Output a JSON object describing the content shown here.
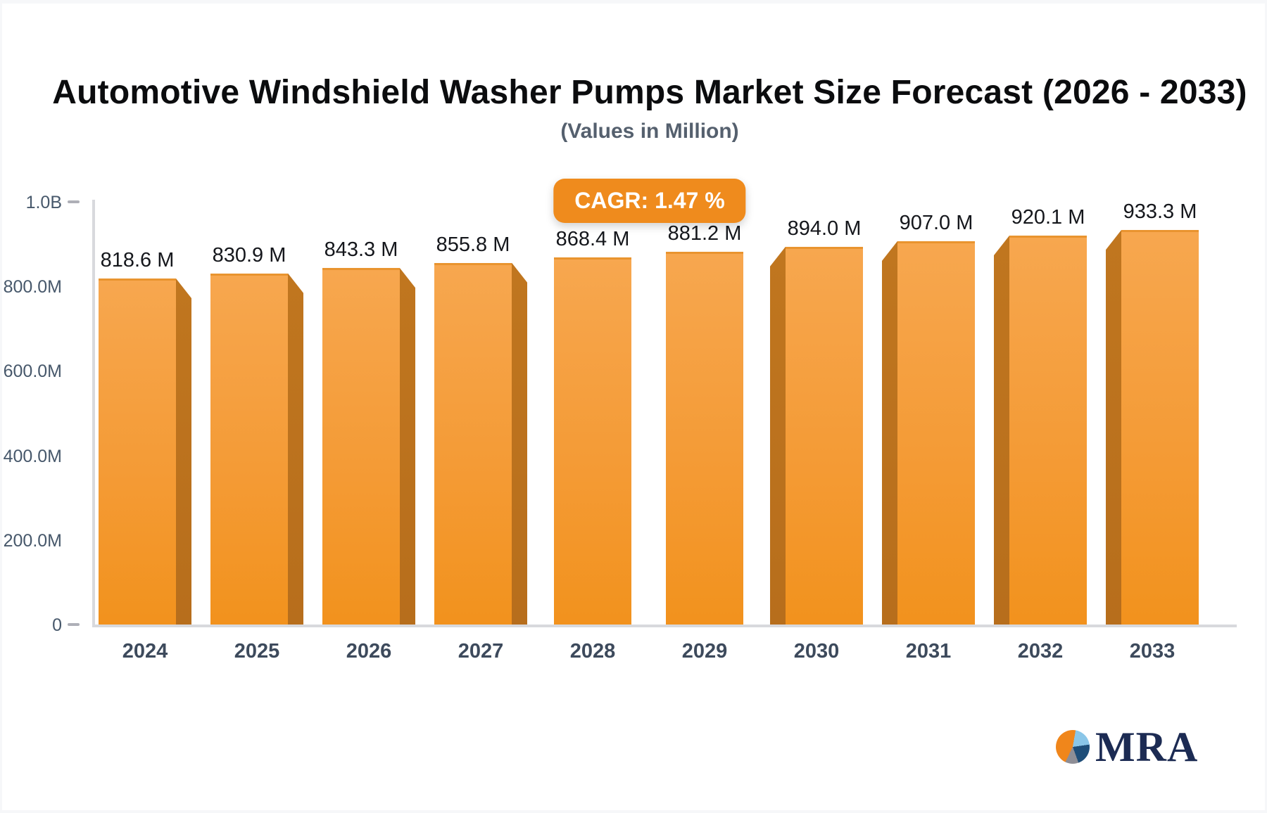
{
  "page": {
    "title": "Automotive Windshield Washer Pumps Market Size Forecast (2026 - 2033)",
    "subtitle": "(Values in Million)"
  },
  "badge": {
    "label": "CAGR: 1.47 %"
  },
  "chart_data": {
    "type": "bar",
    "title": "Automotive Windshield Washer Pumps Market Size Forecast (2026 - 2033)",
    "subtitle": "(Values in Million)",
    "xlabel": "",
    "ylabel": "",
    "ylim": [
      0,
      1000
    ],
    "unit": "Million",
    "grid": false,
    "legend": false,
    "categories": [
      "2024",
      "2025",
      "2026",
      "2027",
      "2028",
      "2029",
      "2030",
      "2031",
      "2032",
      "2033"
    ],
    "values": [
      818.6,
      830.9,
      843.3,
      855.8,
      868.4,
      881.2,
      894.0,
      907.0,
      920.1,
      933.3
    ],
    "value_labels": [
      "818.6 M",
      "830.9 M",
      "843.3 M",
      "855.8 M",
      "868.4 M",
      "881.2 M",
      "894.0 M",
      "907.0 M",
      "920.1 M",
      "933.3 M"
    ],
    "cagr": "1.47 %",
    "yticks": [
      {
        "value": 0,
        "label": "0",
        "tick": true
      },
      {
        "value": 200,
        "label": "200.0M",
        "tick": false
      },
      {
        "value": 400,
        "label": "400.0M",
        "tick": false
      },
      {
        "value": 600,
        "label": "600.0M",
        "tick": false
      },
      {
        "value": 800,
        "label": "800.0M",
        "tick": false
      },
      {
        "value": 1000,
        "label": "1.0B",
        "tick": true
      }
    ],
    "sides": [
      "right",
      "right",
      "right",
      "right",
      "none",
      "none",
      "left",
      "left",
      "left",
      "left"
    ],
    "colors": {
      "bar_top": "#f7a74f",
      "bar_bottom": "#f2921d",
      "bar_side": "#be7220",
      "bar_top_edge": "#e9942f",
      "badge_bg": "#ef8b1d",
      "badge_text": "#ffffff",
      "axis_line": "#d8d9dd",
      "tick_dash": "#aeafb7",
      "y_label": "#47586b",
      "x_label": "#3d4a5c",
      "value_label": "#15171c",
      "title": "#0b0c0e",
      "subtitle": "#55606e",
      "logo_navy": "#1c2b53",
      "logo_orange": "#f0861b",
      "logo_blue": "#8ac6e8",
      "logo_gray": "#8e8e96"
    }
  },
  "logo": {
    "brand": "MRA"
  }
}
